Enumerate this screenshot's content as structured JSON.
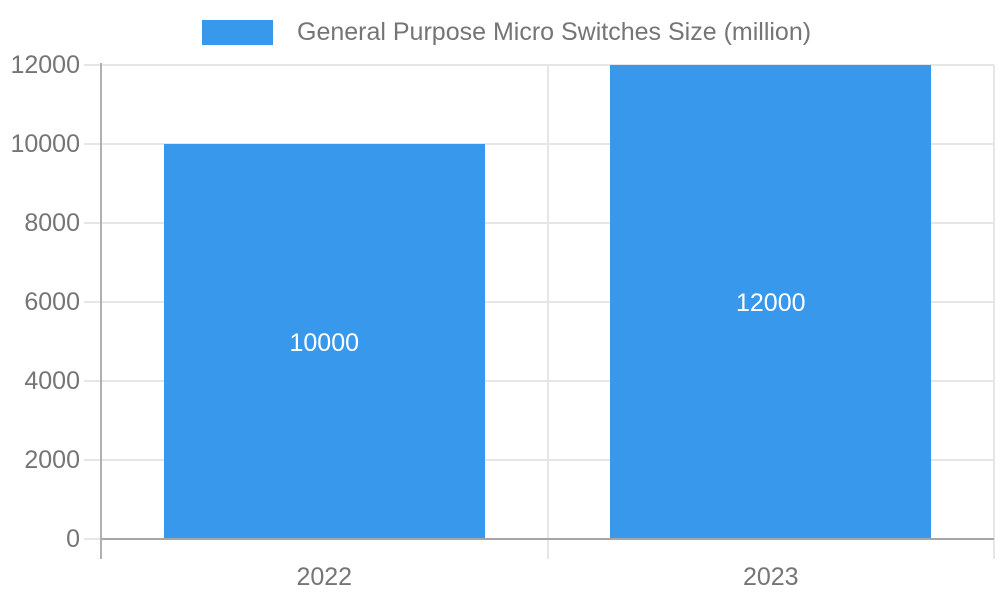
{
  "chart_data": {
    "type": "bar",
    "title": "",
    "categories": [
      "2022",
      "2023"
    ],
    "series": [
      {
        "name": "General Purpose Micro Switches Size (million)",
        "values": [
          10000,
          12000
        ]
      }
    ],
    "bar_value_labels": [
      "10000",
      "12000"
    ],
    "xlabel": "",
    "ylabel": "",
    "ylim": [
      0,
      12000
    ],
    "yticks": [
      0,
      2000,
      4000,
      6000,
      8000,
      10000,
      12000
    ],
    "ytick_labels": [
      "0",
      "2000",
      "4000",
      "6000",
      "8000",
      "10000",
      "12000"
    ],
    "grid": true,
    "legend": {
      "position": "top",
      "entries": [
        {
          "label": "General Purpose Micro Switches Size (million)",
          "color": "#3898EC"
        }
      ]
    },
    "colors": {
      "bar": "#3898EC",
      "bar_label_text": "#FFFFFF",
      "axis_text": "#757575",
      "gridline": "#E6E6E6",
      "baseline": "#A6A6A6",
      "axis_line": "#B0B0B0",
      "background": "#FFFFFF"
    }
  }
}
